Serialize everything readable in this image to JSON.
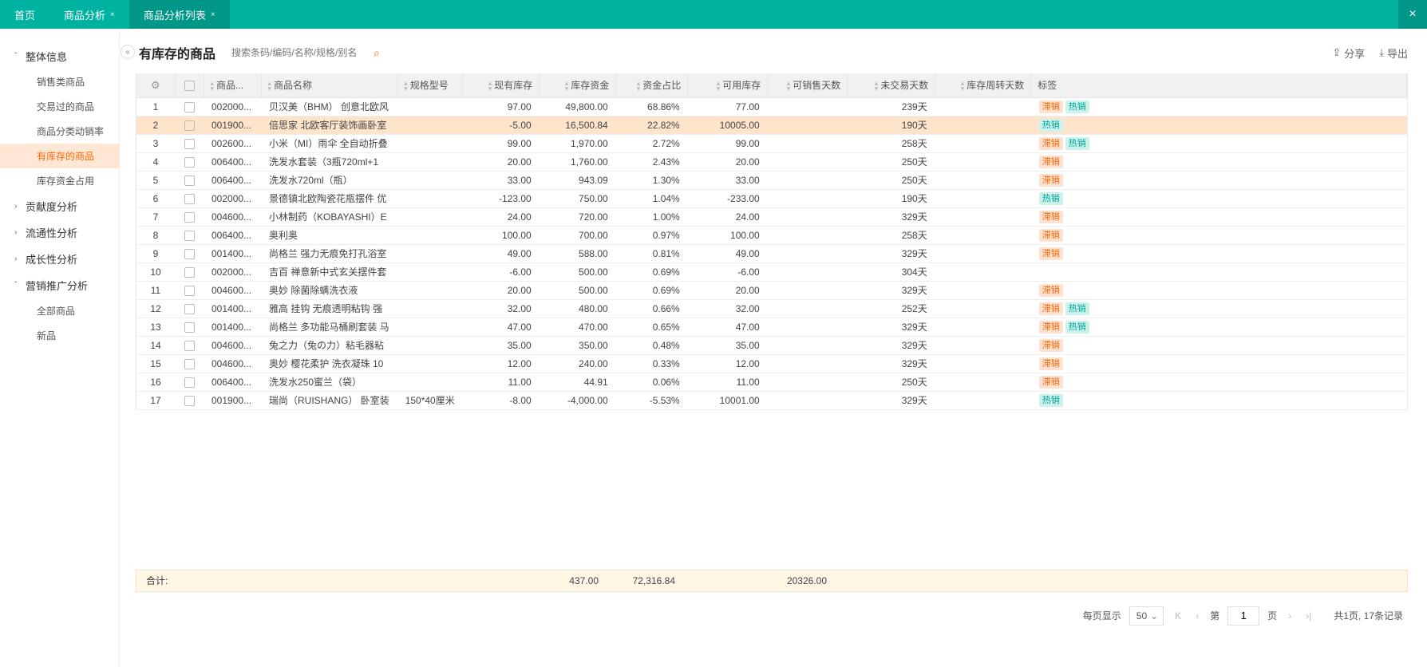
{
  "tabs": [
    {
      "label": "首页",
      "closable": false,
      "active": false
    },
    {
      "label": "商品分析",
      "closable": true,
      "active": false
    },
    {
      "label": "商品分析列表",
      "closable": true,
      "active": true
    }
  ],
  "sidebar": [
    {
      "label": "整体信息",
      "expanded": true,
      "children": [
        {
          "label": "销售类商品"
        },
        {
          "label": "交易过的商品"
        },
        {
          "label": "商品分类动销率"
        },
        {
          "label": "有库存的商品",
          "active": true
        },
        {
          "label": "库存资金占用"
        }
      ]
    },
    {
      "label": "贡献度分析",
      "expanded": false
    },
    {
      "label": "流通性分析",
      "expanded": false
    },
    {
      "label": "成长性分析",
      "expanded": false
    },
    {
      "label": "营销推广分析",
      "expanded": true,
      "children": [
        {
          "label": "全部商品"
        },
        {
          "label": "新品"
        }
      ]
    }
  ],
  "page": {
    "title": "有库存的商品",
    "search_placeholder": "搜索条码/编码/名称/规格/别名",
    "share_label": "分享",
    "export_label": "导出"
  },
  "columns": {
    "idx": "",
    "chk": "",
    "code": "商品...",
    "name": "商品名称",
    "spec": "规格型号",
    "stock": "现有库存",
    "fund": "库存资金",
    "pct": "资金占比",
    "avail": "可用库存",
    "sale": "可销售天数",
    "notrade": "未交易天数",
    "turn": "库存周转天数",
    "tag": "标签"
  },
  "rows": [
    {
      "idx": "1",
      "code": "002000...",
      "name": "贝汉美（BHM）  创意北欧风",
      "spec": "",
      "stock": "97.00",
      "fund": "49,800.00",
      "pct": "68.86%",
      "avail": "77.00",
      "sale": "",
      "notrade": "239天",
      "turn": "",
      "tags": [
        "滞销",
        "热销"
      ]
    },
    {
      "idx": "2",
      "code": "001900...",
      "name": "倍思家 北欧客厅装饰画卧室",
      "spec": "",
      "stock": "-5.00",
      "fund": "16,500.84",
      "pct": "22.82%",
      "avail": "10005.00",
      "sale": "",
      "notrade": "190天",
      "turn": "",
      "tags": [
        "热销"
      ],
      "highlight": true
    },
    {
      "idx": "3",
      "code": "002600...",
      "name": "小米（MI）雨伞 全自动折叠",
      "spec": "",
      "stock": "99.00",
      "fund": "1,970.00",
      "pct": "2.72%",
      "avail": "99.00",
      "sale": "",
      "notrade": "258天",
      "turn": "",
      "tags": [
        "滞销",
        "热销"
      ]
    },
    {
      "idx": "4",
      "code": "006400...",
      "name": "洗发水套装（3瓶720ml+1",
      "spec": "",
      "stock": "20.00",
      "fund": "1,760.00",
      "pct": "2.43%",
      "avail": "20.00",
      "sale": "",
      "notrade": "250天",
      "turn": "",
      "tags": [
        "滞销"
      ]
    },
    {
      "idx": "5",
      "code": "006400...",
      "name": "洗发水720ml（瓶）",
      "spec": "",
      "stock": "33.00",
      "fund": "943.09",
      "pct": "1.30%",
      "avail": "33.00",
      "sale": "",
      "notrade": "250天",
      "turn": "",
      "tags": [
        "滞销"
      ]
    },
    {
      "idx": "6",
      "code": "002000...",
      "name": "景德镇北欧陶瓷花瓶摆件 优",
      "spec": "",
      "stock": "-123.00",
      "fund": "750.00",
      "pct": "1.04%",
      "avail": "-233.00",
      "sale": "",
      "notrade": "190天",
      "turn": "",
      "tags": [
        "热销"
      ]
    },
    {
      "idx": "7",
      "code": "004600...",
      "name": "小林制药（KOBAYASHI）E",
      "spec": "",
      "stock": "24.00",
      "fund": "720.00",
      "pct": "1.00%",
      "avail": "24.00",
      "sale": "",
      "notrade": "329天",
      "turn": "",
      "tags": [
        "滞销"
      ]
    },
    {
      "idx": "8",
      "code": "006400...",
      "name": "奥利奥",
      "spec": "",
      "stock": "100.00",
      "fund": "700.00",
      "pct": "0.97%",
      "avail": "100.00",
      "sale": "",
      "notrade": "258天",
      "turn": "",
      "tags": [
        "滞销"
      ]
    },
    {
      "idx": "9",
      "code": "001400...",
      "name": "尚格兰 强力无痕免打孔浴室",
      "spec": "",
      "stock": "49.00",
      "fund": "588.00",
      "pct": "0.81%",
      "avail": "49.00",
      "sale": "",
      "notrade": "329天",
      "turn": "",
      "tags": [
        "滞销"
      ]
    },
    {
      "idx": "10",
      "code": "002000...",
      "name": "吉百 禅意新中式玄关摆件套",
      "spec": "",
      "stock": "-6.00",
      "fund": "500.00",
      "pct": "0.69%",
      "avail": "-6.00",
      "sale": "",
      "notrade": "304天",
      "turn": "",
      "tags": []
    },
    {
      "idx": "11",
      "code": "004600...",
      "name": "奥妙 除菌除螨洗衣液",
      "spec": "",
      "stock": "20.00",
      "fund": "500.00",
      "pct": "0.69%",
      "avail": "20.00",
      "sale": "",
      "notrade": "329天",
      "turn": "",
      "tags": [
        "滞销"
      ]
    },
    {
      "idx": "12",
      "code": "001400...",
      "name": "雅高 挂钩 无痕透明粘钩 强",
      "spec": "",
      "stock": "32.00",
      "fund": "480.00",
      "pct": "0.66%",
      "avail": "32.00",
      "sale": "",
      "notrade": "252天",
      "turn": "",
      "tags": [
        "滞销",
        "热销"
      ]
    },
    {
      "idx": "13",
      "code": "001400...",
      "name": "尚格兰 多功能马桶刷套装 马",
      "spec": "",
      "stock": "47.00",
      "fund": "470.00",
      "pct": "0.65%",
      "avail": "47.00",
      "sale": "",
      "notrade": "329天",
      "turn": "",
      "tags": [
        "滞销",
        "热销"
      ]
    },
    {
      "idx": "14",
      "code": "004600...",
      "name": "兔之力（兔の力）粘毛器粘",
      "spec": "",
      "stock": "35.00",
      "fund": "350.00",
      "pct": "0.48%",
      "avail": "35.00",
      "sale": "",
      "notrade": "329天",
      "turn": "",
      "tags": [
        "滞销"
      ]
    },
    {
      "idx": "15",
      "code": "004600...",
      "name": "奥妙 樱花柔护 洗衣凝珠 10",
      "spec": "",
      "stock": "12.00",
      "fund": "240.00",
      "pct": "0.33%",
      "avail": "12.00",
      "sale": "",
      "notrade": "329天",
      "turn": "",
      "tags": [
        "滞销"
      ]
    },
    {
      "idx": "16",
      "code": "006400...",
      "name": "洗发水250蜜兰（袋）",
      "spec": "",
      "stock": "11.00",
      "fund": "44.91",
      "pct": "0.06%",
      "avail": "11.00",
      "sale": "",
      "notrade": "250天",
      "turn": "",
      "tags": [
        "滞销"
      ]
    },
    {
      "idx": "17",
      "code": "001900...",
      "name": "瑞尚（RUISHANG）  卧室装",
      "spec": "150*40厘米",
      "stock": "-8.00",
      "fund": "-4,000.00",
      "pct": "-5.53%",
      "avail": "10001.00",
      "sale": "",
      "notrade": "329天",
      "turn": "",
      "tags": [
        "热销"
      ]
    }
  ],
  "totals": {
    "label": "合计:",
    "stock": "437.00",
    "fund": "72,316.84",
    "avail": "20326.00"
  },
  "pager": {
    "per_page_label": "每页显示",
    "size": "50",
    "page_prefix": "第",
    "page": "1",
    "page_suffix": "页",
    "summary": "共1页, 17条记录"
  },
  "tag_names": {
    "滞销": "tag-orange",
    "热销": "tag-teal"
  }
}
